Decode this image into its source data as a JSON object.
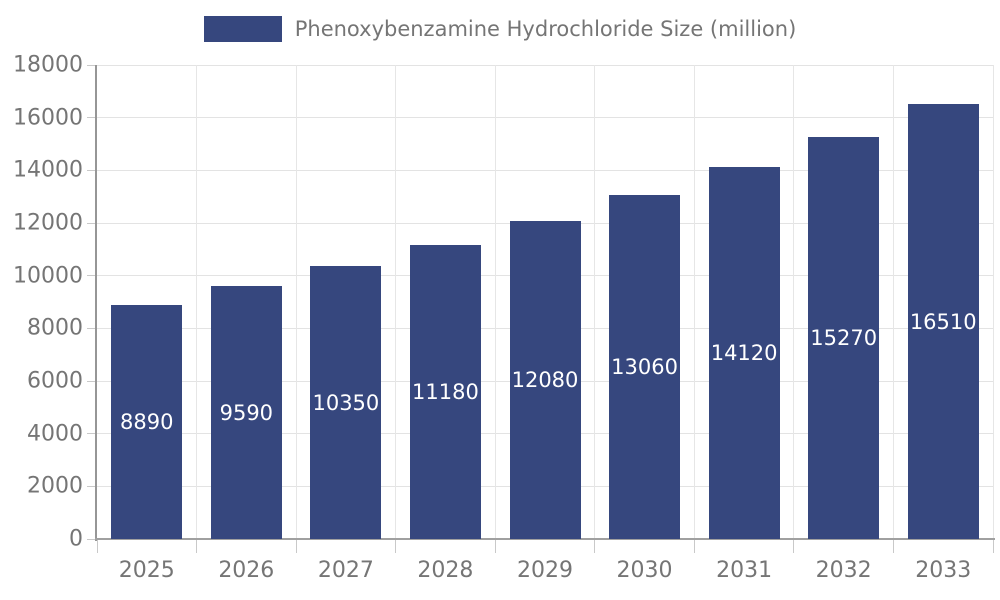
{
  "legend": {
    "label": "Phenoxybenzamine Hydrochloride Size (million)",
    "swatch_color": "#36477e"
  },
  "chart_data": {
    "type": "bar",
    "title": "Phenoxybenzamine Hydrochloride Size (million)",
    "categories": [
      "2025",
      "2026",
      "2027",
      "2028",
      "2029",
      "2030",
      "2031",
      "2032",
      "2033"
    ],
    "values": [
      8890,
      9590,
      10350,
      11180,
      12080,
      13060,
      14120,
      15270,
      16510
    ],
    "bar_labels": [
      "8890",
      "9590",
      "10350",
      "11180",
      "12080",
      "13060",
      "14120",
      "15270",
      "16510"
    ],
    "ylim": [
      0,
      18000
    ],
    "yticks": [
      0,
      2000,
      4000,
      6000,
      8000,
      10000,
      12000,
      14000,
      16000,
      18000
    ],
    "xlabel": "",
    "ylabel": "",
    "grid": true,
    "legend_position": "top-center",
    "colors": {
      "bar": "#36477e",
      "bar_label_text": "#ffffff",
      "axis_text": "#757575",
      "grid_line": "#e3e3e3",
      "axis_line": "#9a9a9a"
    }
  }
}
